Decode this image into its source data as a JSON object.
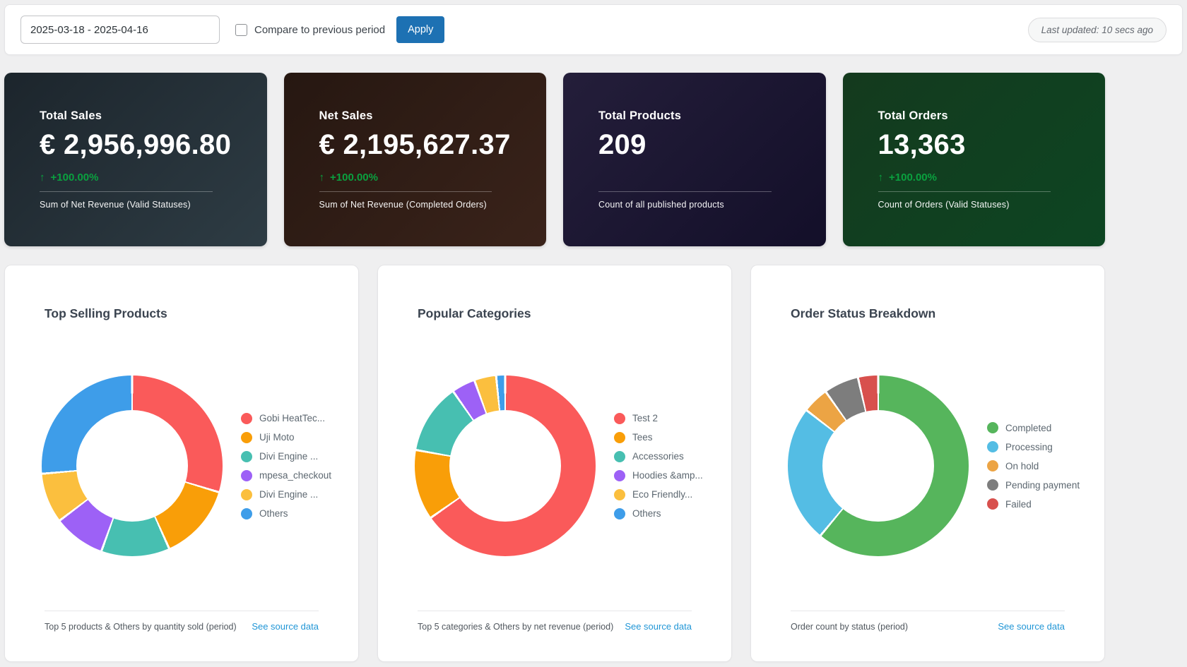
{
  "theme": {
    "accent_blue": "#1d71b3",
    "link_blue": "#2196d6",
    "delta_green": "#0aa13f",
    "page_bg": "#efeff0"
  },
  "filter_bar": {
    "date_range": "2025-03-18 - 2025-04-16",
    "compare_label": "Compare to previous period",
    "apply_label": "Apply",
    "last_updated": "Last updated: 10 secs ago"
  },
  "kpi": {
    "cards": [
      {
        "title": "Total Sales",
        "value": "€ 2,956,996.80",
        "delta_arrow": "↑",
        "delta": "+100.00%",
        "subtitle": "Sum of Net Revenue (Valid Statuses)",
        "bg_from": "#1c252c",
        "bg_to": "#2e3c44"
      },
      {
        "title": "Net Sales",
        "value": "€ 2,195,627.37",
        "delta_arrow": "↑",
        "delta": "+100.00%",
        "subtitle": "Sum of Net Revenue (Completed Orders)",
        "bg_from": "#261711",
        "bg_to": "#3a231a"
      },
      {
        "title": "Total Products",
        "value": "209",
        "delta_arrow": "",
        "delta": "",
        "subtitle": "Count of all published products",
        "bg_from": "#241e3a",
        "bg_to": "#130f29"
      },
      {
        "title": "Total Orders",
        "value": "13,363",
        "delta_arrow": "↑",
        "delta": "+100.00%",
        "subtitle": "Count of Orders (Valid Statuses)",
        "bg_from": "#143a1e",
        "bg_to": "#0d4522"
      }
    ]
  },
  "chart_data": [
    {
      "type": "pie",
      "title": "Top Selling Products",
      "footnote": "Top 5 products & Others by quantity sold (period)",
      "source_link": "See source data",
      "legend_position": "right",
      "values_are": "percent share of quantity sold",
      "segments": [
        {
          "label": "Gobi HeatTec...",
          "value": 29.7,
          "color": "#fa5a5a"
        },
        {
          "label": "Uji Moto",
          "value": 13.6,
          "color": "#f99e08"
        },
        {
          "label": "Divi Engine ...",
          "value": 12.2,
          "color": "#47bfb1"
        },
        {
          "label": "mpesa_checkout",
          "value": 9.2,
          "color": "#9d61f6"
        },
        {
          "label": "Divi Engine ...",
          "value": 8.9,
          "color": "#fbbf3e"
        },
        {
          "label": "Others",
          "value": 26.4,
          "color": "#3e9de9"
        }
      ]
    },
    {
      "type": "pie",
      "title": "Popular Categories",
      "footnote": "Top 5 categories & Others by net revenue (period)",
      "source_link": "See source data",
      "legend_position": "right",
      "values_are": "percent share of net revenue",
      "segments": [
        {
          "label": "Test 2",
          "value": 65.3,
          "color": "#fa5a5a"
        },
        {
          "label": "Tees",
          "value": 12.5,
          "color": "#f99e08"
        },
        {
          "label": "Accessories",
          "value": 12.5,
          "color": "#47bfb1"
        },
        {
          "label": "Hoodies &amp...",
          "value": 4.2,
          "color": "#9d61f6"
        },
        {
          "label": "Eco Friendly...",
          "value": 3.9,
          "color": "#fbbf3e"
        },
        {
          "label": "Others",
          "value": 1.6,
          "color": "#3e9de9"
        }
      ]
    },
    {
      "type": "pie",
      "title": "Order Status Breakdown",
      "footnote": "Order count by status (period)",
      "source_link": "See source data",
      "legend_position": "right",
      "values_are": "percent share of order count",
      "segments": [
        {
          "label": "Completed",
          "value": 61.0,
          "color": "#56b55c"
        },
        {
          "label": "Processing",
          "value": 24.5,
          "color": "#54bde4"
        },
        {
          "label": "On hold",
          "value": 4.7,
          "color": "#eca444"
        },
        {
          "label": "Pending payment",
          "value": 6.2,
          "color": "#7d7d7d"
        },
        {
          "label": "Failed",
          "value": 3.6,
          "color": "#d8504d"
        }
      ]
    }
  ]
}
